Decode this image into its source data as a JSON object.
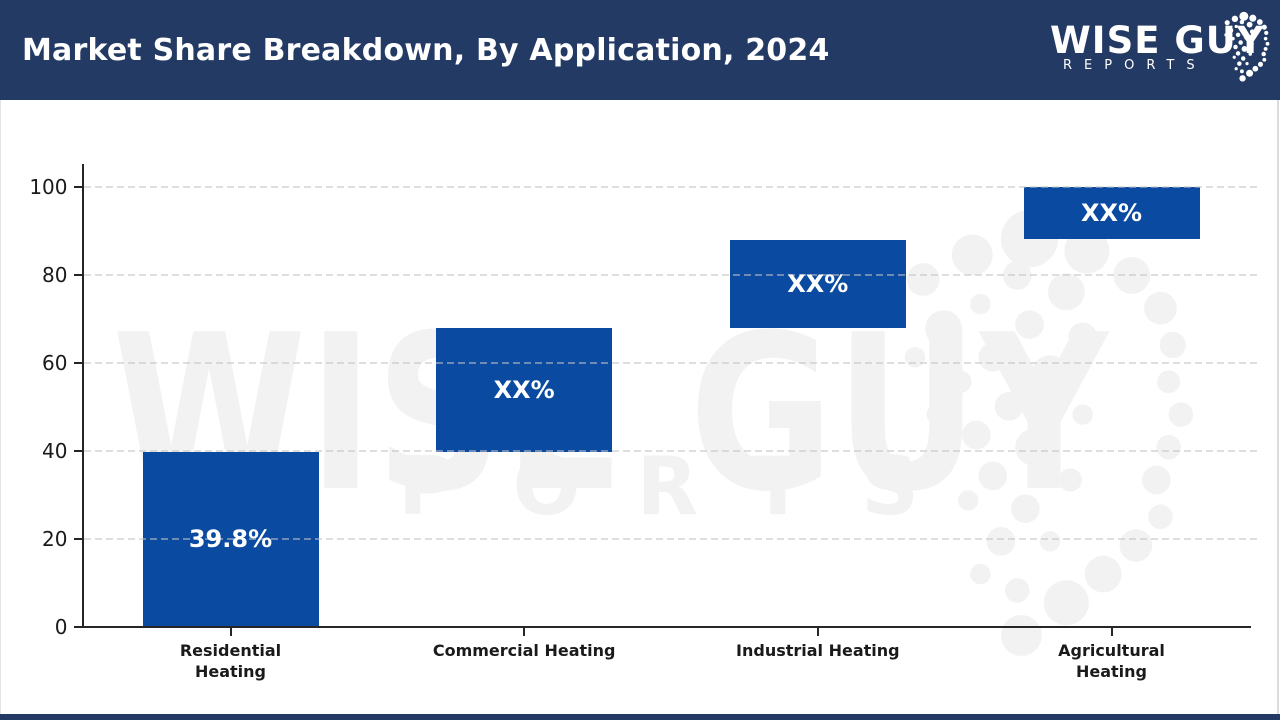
{
  "header": {
    "title": "Market Share Breakdown, By Application, 2024",
    "logo": {
      "primary": "WISE GUY",
      "secondary": "REPORTS"
    }
  },
  "watermark": {
    "line1": "WISE GUY",
    "line2": "PORTS"
  },
  "colors": {
    "header_bg": "#233a64",
    "bar": "#0a4aa1",
    "axis": "#262626",
    "watermark": "#f2f2f2",
    "tick_text": "#1a1a1a"
  },
  "chart_data": {
    "type": "bar",
    "subtype": "waterfall",
    "title": "Market Share Breakdown, By Application, 2024",
    "xlabel": "",
    "ylabel": "",
    "ylim": [
      0,
      105
    ],
    "yticks": [
      0,
      20,
      40,
      60,
      80,
      100
    ],
    "grid": "dashed-horizontal",
    "legend": "none",
    "categories": [
      "Residential Heating",
      "Commercial Heating",
      "Industrial Heating",
      "Agricultural Heating"
    ],
    "category_label_lines": [
      [
        "Residential",
        "Heating"
      ],
      [
        "Commercial Heating"
      ],
      [
        "Industrial Heating"
      ],
      [
        "Agricultural",
        "Heating"
      ]
    ],
    "segments": [
      {
        "category": "Residential Heating",
        "start": 0,
        "end": 39.8,
        "value": 39.8,
        "label": "39.8%"
      },
      {
        "category": "Commercial Heating",
        "start": 39.8,
        "end": 67.9,
        "value": 28.1,
        "label": "XX%"
      },
      {
        "category": "Industrial Heating",
        "start": 67.9,
        "end": 88.0,
        "value": 20.1,
        "label": "XX%"
      },
      {
        "category": "Agricultural Heating",
        "start": 88.0,
        "end": 100.0,
        "value": 12.0,
        "label": "XX%"
      }
    ]
  }
}
